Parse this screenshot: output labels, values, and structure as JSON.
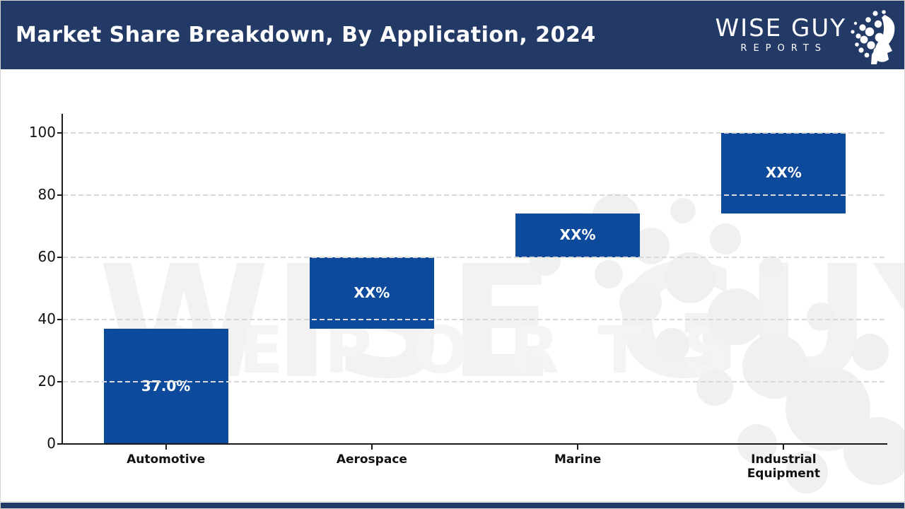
{
  "header": {
    "title": "Market Share Breakdown, By Application, 2024",
    "logo_line1": "WISE GUY",
    "logo_line2": "REPORTS"
  },
  "watermark": {
    "line1": "WISE GUY",
    "line2": "REPORTS"
  },
  "colors": {
    "header_bg": "#233a66",
    "bar_fill": "#0d4a9c",
    "bar_label_text": "#ffffff",
    "gridline": "#d9d9d9",
    "axis": "#1a1a1a",
    "watermark": "#f2f2f2"
  },
  "chart_data": {
    "type": "bar",
    "subtype": "waterfall",
    "title": "Market Share Breakdown, By Application, 2024",
    "categories": [
      "Automotive",
      "Aerospace",
      "Marine",
      "Industrial Equipment"
    ],
    "segments": [
      {
        "category": "Automotive",
        "start": 0,
        "end": 37,
        "label": "37.0%"
      },
      {
        "category": "Aerospace",
        "start": 37,
        "end": 60,
        "label": "XX%"
      },
      {
        "category": "Marine",
        "start": 60,
        "end": 74,
        "label": "XX%"
      },
      {
        "category": "Industrial Equipment",
        "start": 74,
        "end": 100,
        "label": "XX%"
      }
    ],
    "xlabel": "",
    "ylabel": "",
    "ylim": [
      0,
      100
    ],
    "yticks": [
      0,
      20,
      40,
      60,
      80,
      100
    ],
    "grid": "dashed-horizontal",
    "legend": "none",
    "bar_color": "#0d4a9c"
  }
}
